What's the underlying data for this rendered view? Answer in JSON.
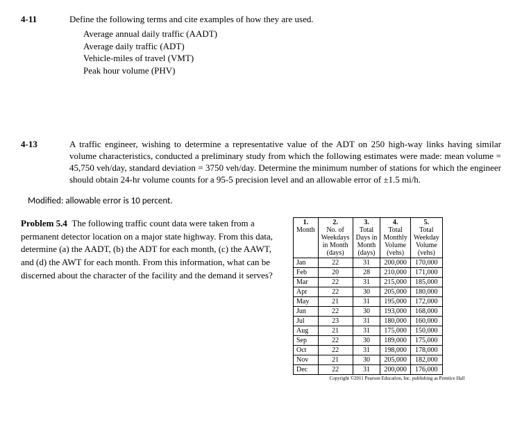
{
  "p411": {
    "number": "4-11",
    "prompt": "Define the following terms and cite examples of how they are used.",
    "terms": [
      "Average annual daily traffic (AADT)",
      "Average daily traffic (ADT)",
      "Vehicle-miles of travel (VMT)",
      "Peak hour volume (PHV)"
    ]
  },
  "p413": {
    "number": "4-13",
    "text": "A traffic engineer, wishing to determine a representative value of the ADT on 250 high-way links having similar volume characteristics, conducted a preliminary study from which the following estimates were made: mean volume = 45,750 veh/day, standard deviation = 3750 veh/day. Determine the minimum number of stations for which the engineer should obtain 24-hr volume counts for a 95-5 precision level and an allowable error of ±1.5 mi/h."
  },
  "modified": "Modified: allowable error is 10 percent.",
  "p54": {
    "label": "Problem 5.4",
    "text": "The following traffic count data were taken from a permanent detector location on a major state highway. From this data, determine (a) the AADT, (b) the ADT for each month, (c) the AAWT, and (d) the AWT for each month. From this information, what can be discerned about the character of the facility and the demand it serves?"
  },
  "table": {
    "headers": [
      {
        "num": "1.",
        "lines": [
          "Month",
          "",
          "",
          ""
        ]
      },
      {
        "num": "2.",
        "lines": [
          "No. of",
          "Weekdays",
          "in Month",
          "(days)"
        ]
      },
      {
        "num": "3.",
        "lines": [
          "Total",
          "Days in",
          "Month",
          "(days)"
        ]
      },
      {
        "num": "4.",
        "lines": [
          "Total",
          "Monthly",
          "Volume",
          "(vehs)"
        ]
      },
      {
        "num": "5.",
        "lines": [
          "Total",
          "Weekday",
          "Volume",
          "(vehs)"
        ]
      }
    ],
    "rows": [
      [
        "Jan",
        "22",
        "31",
        "200,000",
        "170,000"
      ],
      [
        "Feb",
        "20",
        "28",
        "210,000",
        "171,000"
      ],
      [
        "Mar",
        "22",
        "31",
        "215,000",
        "185,000"
      ],
      [
        "Apr",
        "22",
        "30",
        "205,000",
        "180,000"
      ],
      [
        "May",
        "21",
        "31",
        "195,000",
        "172,000"
      ],
      [
        "Jun",
        "22",
        "30",
        "193,000",
        "168,000"
      ],
      [
        "Jul",
        "23",
        "31",
        "180,000",
        "160,000"
      ],
      [
        "Aug",
        "21",
        "31",
        "175,000",
        "150,000"
      ],
      [
        "Sep",
        "22",
        "30",
        "189,000",
        "175,000"
      ],
      [
        "Oct",
        "22",
        "31",
        "198,000",
        "178,000"
      ],
      [
        "Nov",
        "21",
        "30",
        "205,000",
        "182,000"
      ],
      [
        "Dec",
        "22",
        "31",
        "200,000",
        "176,000"
      ]
    ],
    "copyright": "Copyright ©2011 Pearson Education, Inc. publishing as Prentice Hall"
  }
}
